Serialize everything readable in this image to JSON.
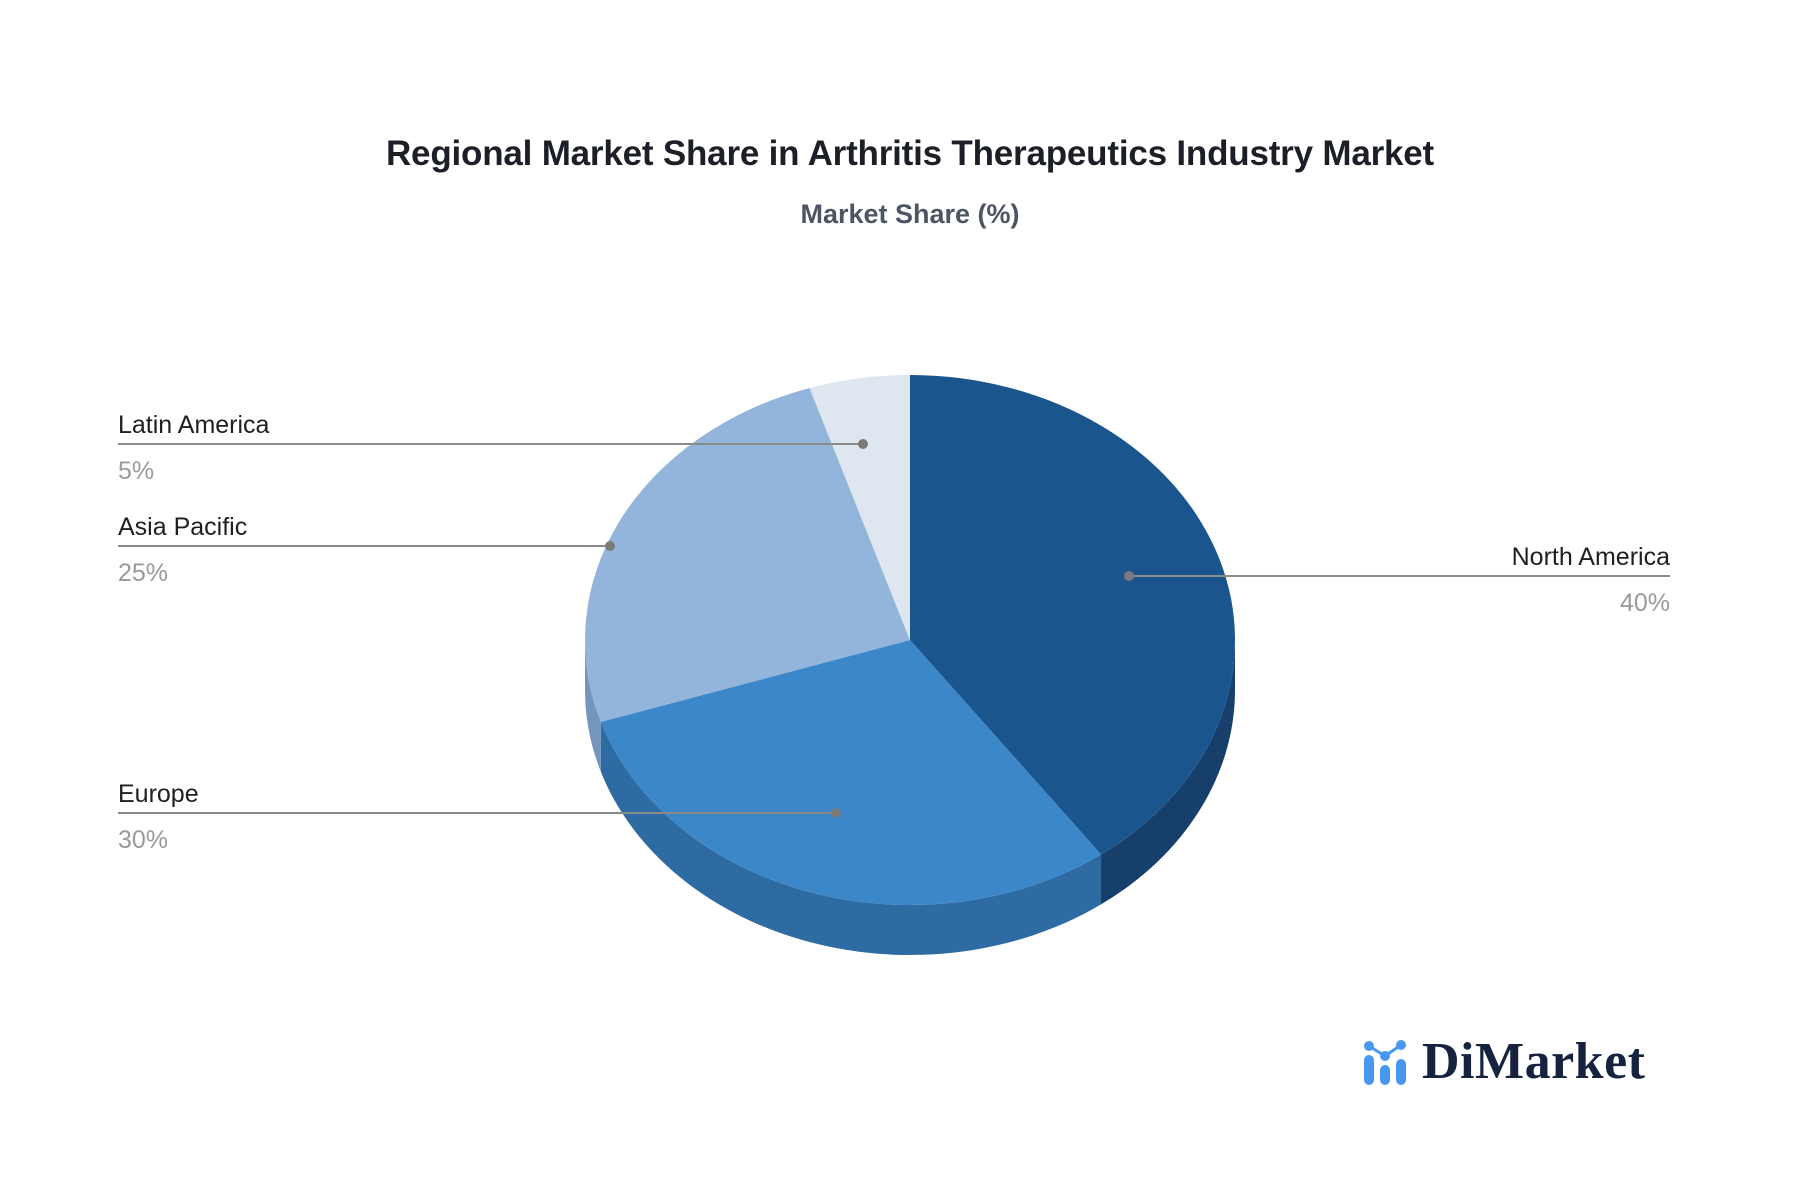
{
  "chart": {
    "title": "Regional Market Share in Arthritis Therapeutics Industry Market",
    "subtitle": "Market Share (%)"
  },
  "chart_data": {
    "type": "pie",
    "style": "3d-depth",
    "title": "Regional Market Share in Arthritis Therapeutics Industry Market",
    "subtitle": "Market Share (%)",
    "unit": "%",
    "start_angle_deg": 0,
    "direction": "clockwise",
    "legend_position": "leader-line-labels",
    "slices": [
      {
        "label": "North America",
        "value": 40,
        "display": "40%",
        "color": "#1B558D",
        "wall_color": "#163F6B"
      },
      {
        "label": "Europe",
        "value": 30,
        "display": "30%",
        "color": "#3C86CA",
        "wall_color": "#2F6BA3"
      },
      {
        "label": "Asia Pacific",
        "value": 25,
        "display": "25%",
        "color": "#93B5DB",
        "wall_color": "#7495BD"
      },
      {
        "label": "Latin America",
        "value": 5,
        "display": "5%",
        "color": "#DEE7F0",
        "wall_color": "#B9C8DA"
      }
    ],
    "label_color": "#1F1F1F",
    "value_color": "#9A9A9A",
    "leader_line_color": "#8A8A8A",
    "leader_dot_color": "#7A7A7A"
  },
  "branding": {
    "logo_text": "DiMarket",
    "logo_icon": "bar-chart-with-trend-dots-icon",
    "logo_icon_color": "#4798F2",
    "logo_text_color": "#15233E"
  }
}
